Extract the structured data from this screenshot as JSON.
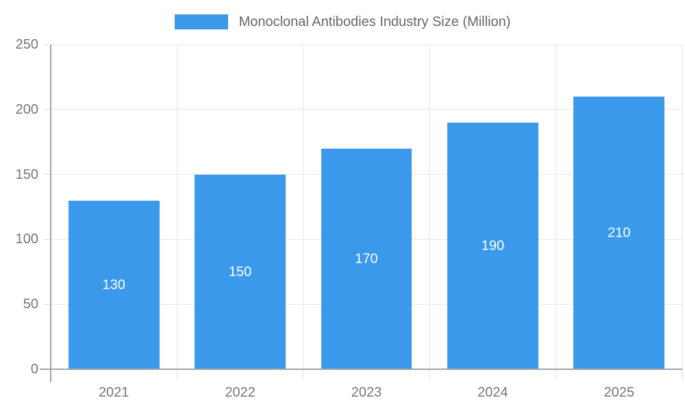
{
  "chart_data": {
    "type": "bar",
    "title": "Monoclonal Antibodies Industry Size (Million)",
    "categories": [
      "2021",
      "2022",
      "2023",
      "2024",
      "2025"
    ],
    "series": [
      {
        "name": "Monoclonal Antibodies Industry Size (Million)",
        "values": [
          130,
          150,
          170,
          190,
          210
        ]
      }
    ],
    "value_labels": [
      "130",
      "150",
      "170",
      "190",
      "210"
    ],
    "xlabel": "",
    "ylabel": "",
    "ylim": [
      0,
      250
    ],
    "yticks": [
      "0",
      "50",
      "100",
      "150",
      "200",
      "250"
    ],
    "ytick_values": [
      0,
      50,
      100,
      150,
      200,
      250
    ],
    "grid": true,
    "legend_position": "top",
    "colors": {
      "bar": "#3b99ec",
      "value_label": "#ffffff",
      "axis_text": "#757575",
      "legend_text": "#666666",
      "gridline": "#e6e6e6",
      "axis_line": "#a3a3a3",
      "background": "#ffffff"
    }
  }
}
